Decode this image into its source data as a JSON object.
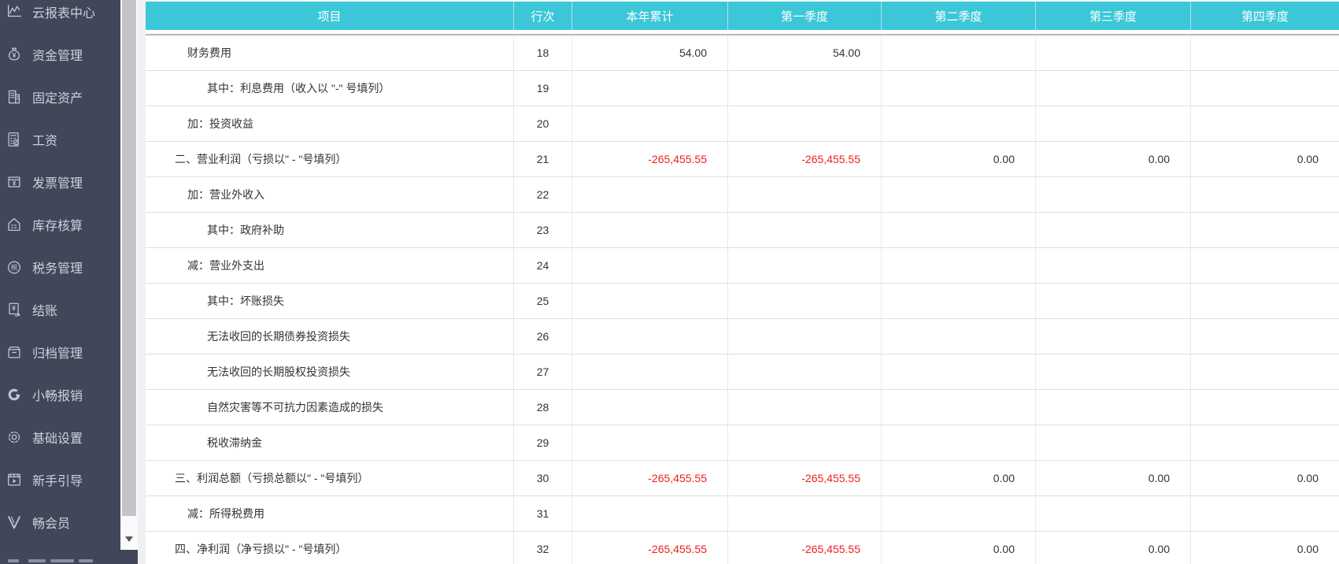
{
  "colors": {
    "accent": "#3bc7d7",
    "negative": "#f01e1e",
    "sidebar_bg": "#414659",
    "sidebar_text": "#ccd1dc",
    "scroll_thumb": "#c3c4c7"
  },
  "sidebar": {
    "items": [
      {
        "id": "cloud-report-center",
        "label": "云报表中心",
        "icon": "line-chart-icon"
      },
      {
        "id": "fund-management",
        "label": "资金管理",
        "icon": "money-bag-icon"
      },
      {
        "id": "fixed-assets",
        "label": "固定资产",
        "icon": "building-icon"
      },
      {
        "id": "salary",
        "label": "工资",
        "icon": "calculator-icon"
      },
      {
        "id": "invoice-management",
        "label": "发票管理",
        "icon": "invoice-icon"
      },
      {
        "id": "inventory-accounting",
        "label": "库存核算",
        "icon": "warehouse-icon"
      },
      {
        "id": "tax-management",
        "label": "税务管理",
        "icon": "tax-badge-icon"
      },
      {
        "id": "closing",
        "label": "结账",
        "icon": "ledger-icon"
      },
      {
        "id": "archive-management",
        "label": "归档管理",
        "icon": "archive-box-icon"
      },
      {
        "id": "xiaochang-reimburse",
        "label": "小畅报销",
        "icon": "reimburse-logo-icon"
      },
      {
        "id": "basic-settings",
        "label": "基础设置",
        "icon": "gear-icon"
      },
      {
        "id": "beginner-guide",
        "label": "新手引导",
        "icon": "video-guide-icon"
      },
      {
        "id": "chang-member",
        "label": "畅会员",
        "icon": "member-v-icon"
      }
    ]
  },
  "table": {
    "columns": [
      "项目",
      "行次",
      "本年累计",
      "第一季度",
      "第二季度",
      "第三季度",
      "第四季度"
    ],
    "rows": [
      {
        "item": "财务费用",
        "indent": 1,
        "line": "18",
        "values": [
          "54.00",
          "54.00",
          "",
          "",
          ""
        ]
      },
      {
        "item": "其中：利息费用（收入以 \"-\" 号填列）",
        "indent": 2,
        "line": "19",
        "values": [
          "",
          "",
          "",
          "",
          ""
        ]
      },
      {
        "item": "加：投资收益",
        "indent": 1,
        "line": "20",
        "values": [
          "",
          "",
          "",
          "",
          ""
        ]
      },
      {
        "item": "二、营业利润（亏损以\" - \"号填列）",
        "indent": 0,
        "line": "21",
        "values": [
          "-265,455.55",
          "-265,455.55",
          "0.00",
          "0.00",
          "0.00"
        ]
      },
      {
        "item": "加：营业外收入",
        "indent": 1,
        "line": "22",
        "values": [
          "",
          "",
          "",
          "",
          ""
        ]
      },
      {
        "item": "其中：政府补助",
        "indent": 2,
        "line": "23",
        "values": [
          "",
          "",
          "",
          "",
          ""
        ]
      },
      {
        "item": "减：营业外支出",
        "indent": 1,
        "line": "24",
        "values": [
          "",
          "",
          "",
          "",
          ""
        ]
      },
      {
        "item": "其中：坏账损失",
        "indent": 2,
        "line": "25",
        "values": [
          "",
          "",
          "",
          "",
          ""
        ]
      },
      {
        "item": "无法收回的长期债券投资损失",
        "indent": 2,
        "line": "26",
        "values": [
          "",
          "",
          "",
          "",
          ""
        ]
      },
      {
        "item": "无法收回的长期股权投资损失",
        "indent": 2,
        "line": "27",
        "values": [
          "",
          "",
          "",
          "",
          ""
        ]
      },
      {
        "item": "自然灾害等不可抗力因素造成的损失",
        "indent": 2,
        "line": "28",
        "values": [
          "",
          "",
          "",
          "",
          ""
        ]
      },
      {
        "item": "税收滞纳金",
        "indent": 2,
        "line": "29",
        "values": [
          "",
          "",
          "",
          "",
          ""
        ]
      },
      {
        "item": "三、利润总额（亏损总额以\" - \"号填列）",
        "indent": 0,
        "line": "30",
        "values": [
          "-265,455.55",
          "-265,455.55",
          "0.00",
          "0.00",
          "0.00"
        ]
      },
      {
        "item": "减：所得税费用",
        "indent": 1,
        "line": "31",
        "values": [
          "",
          "",
          "",
          "",
          ""
        ]
      },
      {
        "item": "四、净利润（净亏损以\" - \"号填列）",
        "indent": 0,
        "line": "32",
        "values": [
          "-265,455.55",
          "-265,455.55",
          "0.00",
          "0.00",
          "0.00"
        ]
      }
    ]
  }
}
